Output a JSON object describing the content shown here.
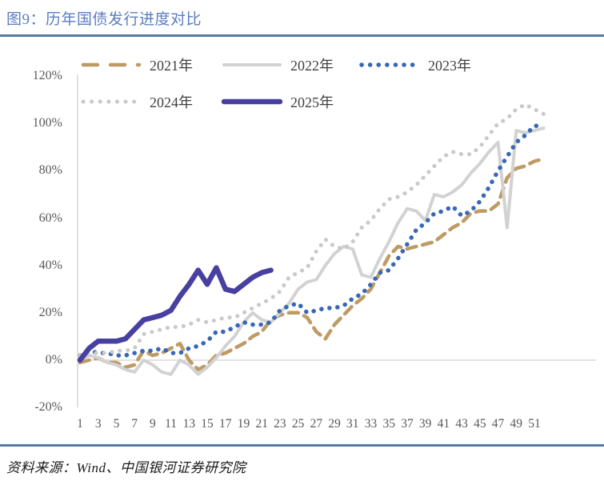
{
  "figure": {
    "title": "图9：历年国债发行进度对比",
    "source": "资料来源：Wind、中国银河证券研究院"
  },
  "colors": {
    "title_text": "#5B7DC0",
    "divider_rule": "#567AA0",
    "axis_text": "#595959",
    "legend_text": "#3F3F3F",
    "source_text": "#1A1A1A",
    "gridline": "#D9D9D9",
    "series_2021": "#BE9B64",
    "series_2022": "#D2D2D2",
    "series_2023": "#3867B4",
    "series_2024": "#C9C9C9",
    "series_2025": "#4840A0"
  },
  "chart_data": {
    "type": "line",
    "title": "历年国债发行进度对比",
    "legend_position": "top",
    "grid": {
      "zero_line": true,
      "other_gridlines": false
    },
    "x_axis": {
      "tick_labels": [
        "1",
        "3",
        "5",
        "7",
        "9",
        "11",
        "13",
        "15",
        "17",
        "19",
        "21",
        "23",
        "25",
        "27",
        "29",
        "31",
        "33",
        "35",
        "37",
        "39",
        "41",
        "43",
        "45",
        "47",
        "49",
        "51"
      ],
      "tick_values": [
        1,
        3,
        5,
        7,
        9,
        11,
        13,
        15,
        17,
        19,
        21,
        23,
        25,
        27,
        29,
        31,
        33,
        35,
        37,
        39,
        41,
        43,
        45,
        47,
        49,
        51
      ],
      "range": [
        1,
        52
      ]
    },
    "y_axis": {
      "tick_labels": [
        "120%",
        "100%",
        "80%",
        "60%",
        "40%",
        "20%",
        "0%",
        "-20%"
      ],
      "tick_values": [
        120,
        100,
        80,
        60,
        40,
        20,
        0,
        -20
      ],
      "ylim": [
        -20,
        120
      ],
      "unit": "%"
    },
    "series": [
      {
        "name": "2021年",
        "color": "#BE9B64",
        "line_style": "dashed",
        "width": 4.5,
        "x_start": 1,
        "values": [
          -1,
          0,
          1,
          -1,
          -1,
          -3,
          -2,
          4,
          2,
          3,
          5,
          7,
          0,
          -4,
          -2,
          2,
          3,
          5,
          7,
          10,
          12,
          17,
          19,
          20,
          20,
          18,
          12,
          9,
          15,
          19,
          23,
          26,
          30,
          37,
          44,
          48,
          47,
          48,
          49,
          50,
          53,
          56,
          58,
          62,
          63,
          63,
          66,
          77,
          81,
          82,
          84,
          85
        ]
      },
      {
        "name": "2022年",
        "color": "#D2D2D2",
        "line_style": "solid",
        "width": 4,
        "x_start": 1,
        "values": [
          0,
          2,
          1,
          -1,
          -2,
          -4,
          -5,
          0,
          -2,
          -5,
          -6,
          0,
          -2,
          -6,
          -3,
          1,
          6,
          10,
          16,
          20,
          17,
          16,
          20,
          24,
          30,
          33,
          34,
          40,
          45,
          48,
          47,
          36,
          35,
          43,
          50,
          58,
          64,
          63,
          59,
          70,
          69,
          71,
          74,
          79,
          83,
          88,
          92,
          56,
          97,
          96,
          97,
          98
        ]
      },
      {
        "name": "2023年",
        "color": "#3867B4",
        "line_style": "dotted",
        "width": 5.5,
        "x_start": 1,
        "values": [
          2,
          4,
          3,
          3,
          2,
          2,
          3,
          4,
          4,
          5,
          3,
          3,
          5,
          6,
          8,
          12,
          12,
          14,
          16,
          15,
          15,
          16,
          21,
          23,
          24,
          20,
          21,
          22,
          22,
          23,
          26,
          28,
          32,
          37,
          38,
          43,
          49,
          55,
          58,
          62,
          63,
          65,
          61,
          63,
          67,
          73,
          80,
          86,
          92,
          95,
          99,
          99
        ]
      },
      {
        "name": "2024年",
        "color": "#C9C9C9",
        "line_style": "dotted",
        "width": 5,
        "x_start": 1,
        "values": [
          2,
          3,
          3,
          3,
          4,
          4,
          5,
          11,
          12,
          13,
          14,
          14,
          15,
          17,
          16,
          17,
          18,
          18,
          20,
          22,
          24,
          26,
          29,
          35,
          37,
          39,
          46,
          51,
          48,
          47,
          50,
          56,
          59,
          64,
          68,
          69,
          71,
          74,
          78,
          82,
          86,
          88,
          87,
          87,
          90,
          95,
          100,
          102,
          106,
          108,
          106,
          104
        ]
      },
      {
        "name": "2025年",
        "color": "#4840A0",
        "line_style": "solid",
        "width": 6.5,
        "x_start": 1,
        "values": [
          0,
          5,
          8,
          8,
          8,
          9,
          13,
          17,
          18,
          19,
          21,
          27,
          32,
          38,
          32,
          39,
          30,
          29,
          32,
          35,
          37,
          38
        ]
      }
    ]
  }
}
